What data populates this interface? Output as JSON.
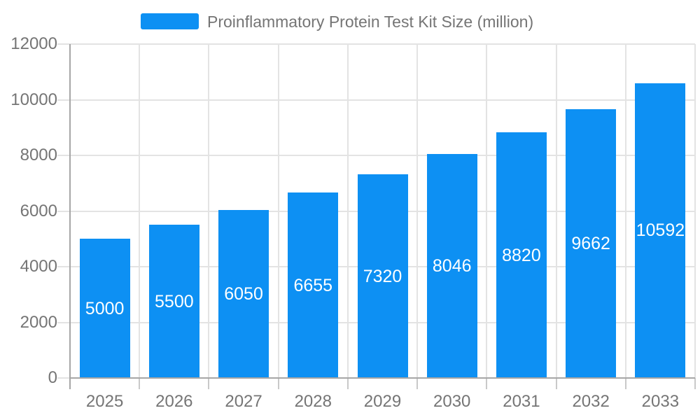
{
  "chart_data": {
    "type": "bar",
    "title": "",
    "legend": {
      "label": "Proinflammatory Protein Test Kit Size (million)",
      "position": "top-center"
    },
    "categories": [
      "2025",
      "2026",
      "2027",
      "2028",
      "2029",
      "2030",
      "2031",
      "2032",
      "2033"
    ],
    "series": [
      {
        "name": "Proinflammatory Protein Test Kit Size (million)",
        "values": [
          5000,
          5500,
          6050,
          6655,
          7320,
          8046,
          8820,
          9662,
          10592
        ]
      }
    ],
    "xlabel": "",
    "ylabel": "",
    "ylim": [
      0,
      12000
    ],
    "yticks": [
      0,
      2000,
      4000,
      6000,
      8000,
      10000,
      12000
    ],
    "grid": true,
    "bar_labels_inside": true,
    "colors": {
      "bar": "#0d90f3",
      "bar_label_text": "#ffffff",
      "axis_text": "#757575",
      "legend_text": "#757575",
      "grid_line": "#e3e3e3",
      "axis_line": "#a6a6a6",
      "tick_line": "#c9c9c9",
      "background": "#ffffff"
    }
  }
}
